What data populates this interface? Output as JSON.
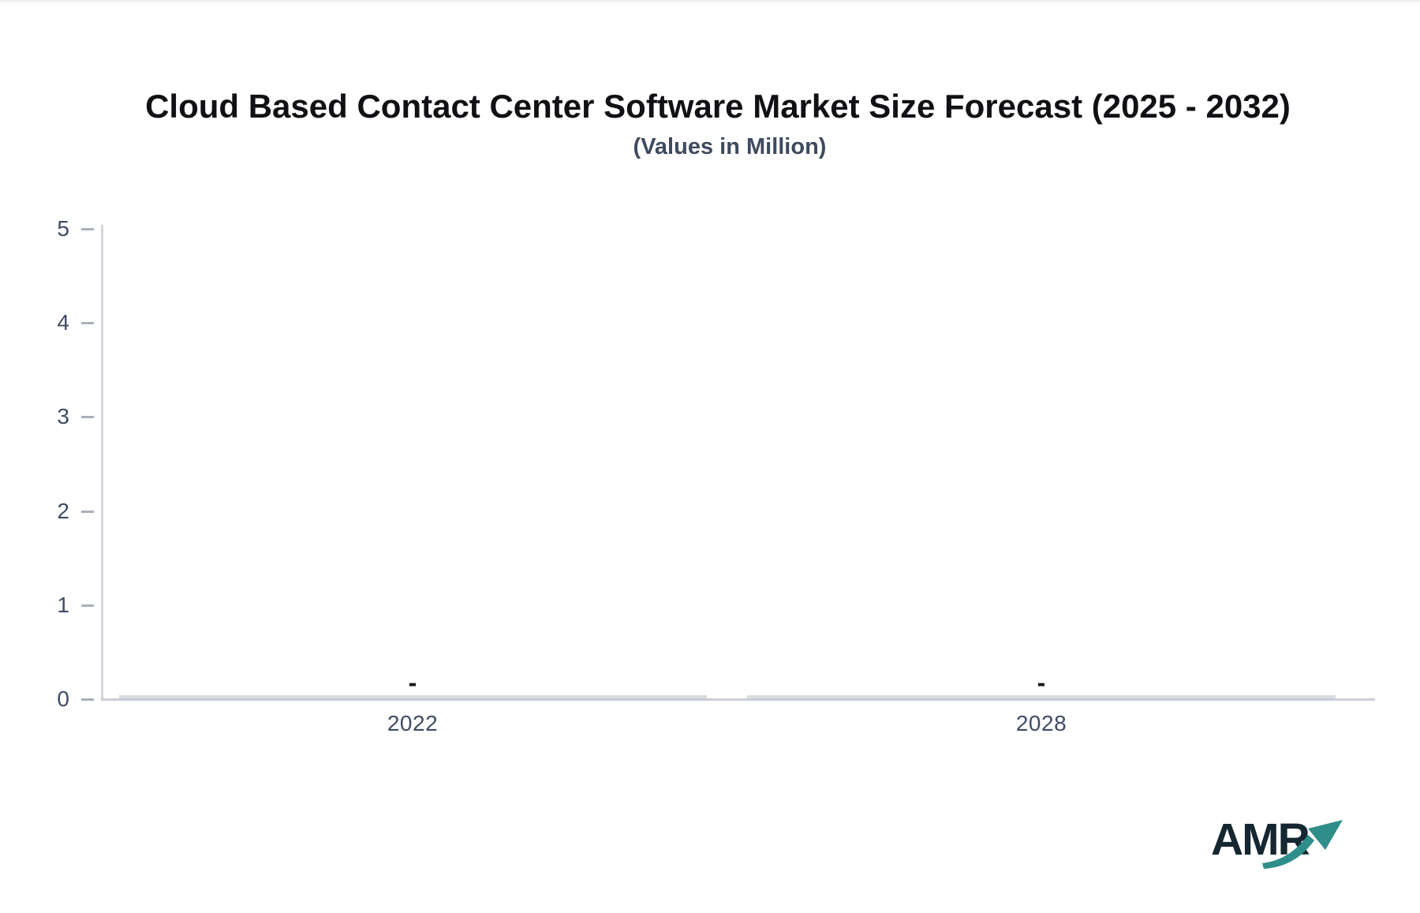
{
  "title": "Cloud Based Contact Center Software Market Size Forecast (2025 - 2032)",
  "subtitle": "(Values in Million)",
  "logo": {
    "text": "AMR",
    "arrow_icon": "trend-up-arrow-icon",
    "text_color": "#152731",
    "arrow_color": "#2f8e8a"
  },
  "chart_data": {
    "type": "bar",
    "title": "Cloud Based Contact Center Software Market Size Forecast (2025 - 2032)",
    "subtitle": "(Values in Million)",
    "categories": [
      "2022",
      "2028"
    ],
    "values": [
      null,
      null
    ],
    "value_labels": [
      "-",
      "-"
    ],
    "xlabel": "",
    "ylabel": "",
    "ylim": [
      0,
      5
    ],
    "yticks": [
      0,
      1,
      2,
      3,
      4,
      5
    ],
    "grid": false,
    "legend": "none",
    "colors": {
      "bar_fill": "#d9dbdf",
      "y_axis_line": "#d4d6db",
      "x_axis_line": "#cacdd5",
      "tick_mark": "#a9b0bb",
      "tick_label": "#3e4c64",
      "value_label": "#17181a",
      "title": "#101114",
      "subtitle": "#3e4a5e"
    }
  }
}
